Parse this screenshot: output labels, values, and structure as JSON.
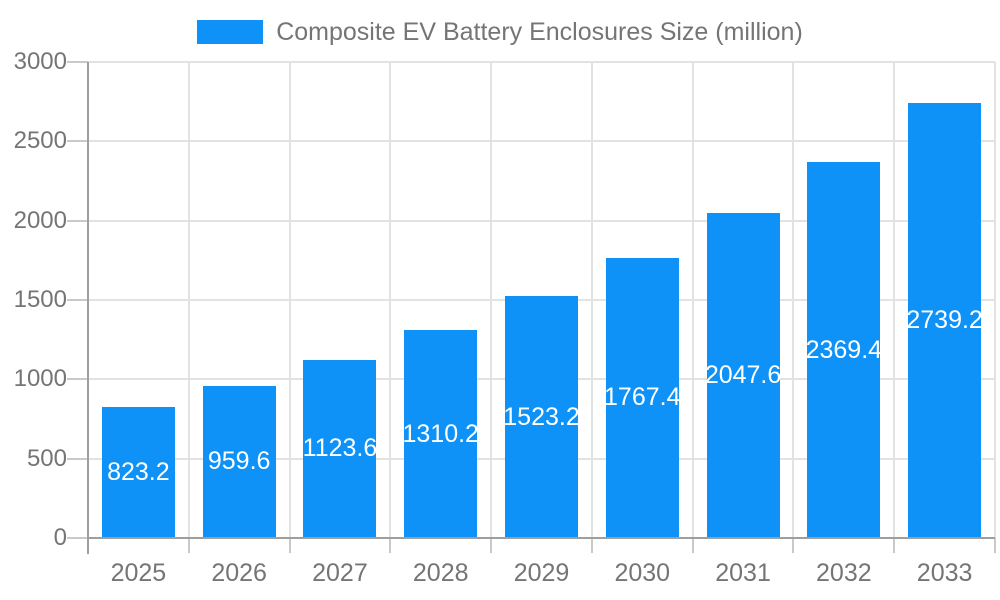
{
  "chart_data": {
    "type": "bar",
    "title": "Composite EV Battery Enclosures Size (million)",
    "categories": [
      "2025",
      "2026",
      "2027",
      "2028",
      "2029",
      "2030",
      "2031",
      "2032",
      "2033"
    ],
    "values": [
      823.2,
      959.6,
      1123.6,
      1310.2,
      1523.2,
      1767.4,
      2047.6,
      2369.4,
      2739.2
    ],
    "value_labels": [
      "823.2",
      "959.6",
      "1123.6",
      "1310.2",
      "1523.2",
      "1767.4",
      "2047.6",
      "2369.4",
      "2739.2"
    ],
    "xlabel": "",
    "ylabel": "",
    "ylim": [
      0,
      3000
    ],
    "yticks": [
      0,
      500,
      1000,
      1500,
      2000,
      2500,
      3000
    ],
    "ytick_labels": [
      "0",
      "500",
      "1000",
      "1500",
      "2000",
      "2500",
      "3000"
    ],
    "grid": "on",
    "legend_position": "top-center",
    "colors": {
      "bar": "#0e92f8",
      "text": "#757575",
      "gridline": "#e2e2e2",
      "axis": "#9e9e9e",
      "tick": "#c9c9c9",
      "value_label": "#ffffff",
      "background": "#ffffff"
    }
  }
}
